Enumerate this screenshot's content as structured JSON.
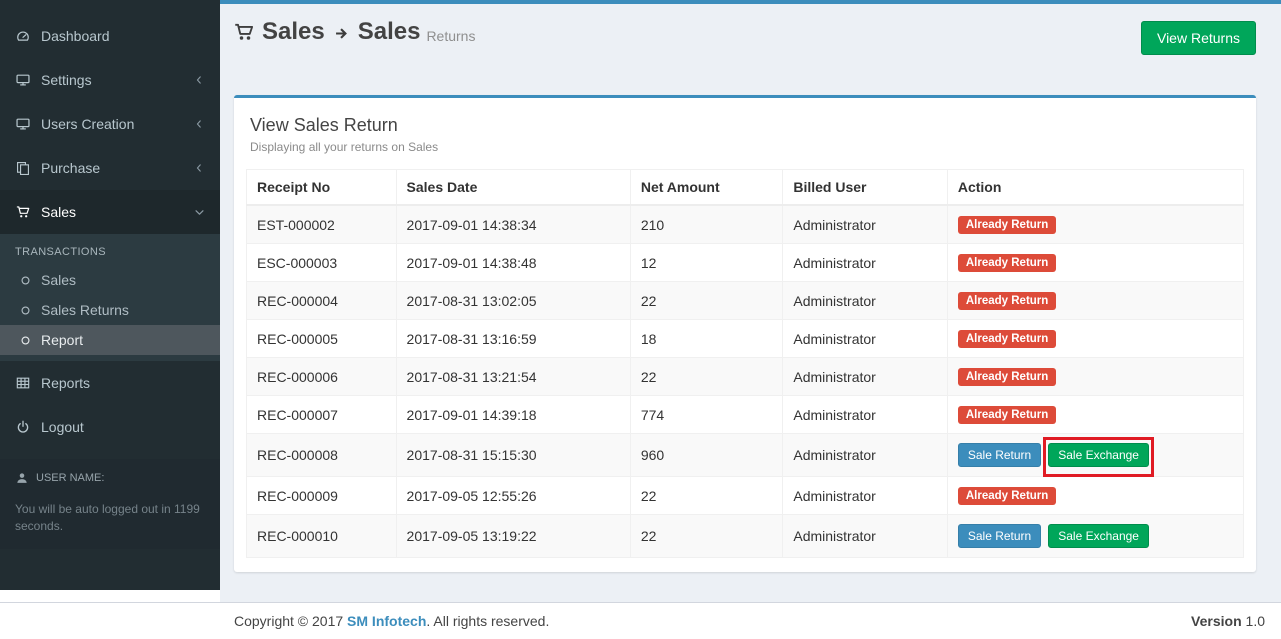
{
  "colors": {
    "sidebar_bg": "#222d32",
    "sidebar_active_bg": "#1e282c",
    "accent_blue": "#3c8dbc",
    "green": "#00a65a",
    "red_badge": "#dd4b39",
    "annotation_red": "#e01b24",
    "content_bg": "#ecf0f5"
  },
  "sidebar": {
    "items": [
      {
        "label": "Dashboard",
        "icon": "dashboard-icon"
      },
      {
        "label": "Settings",
        "icon": "desktop-icon",
        "chevron": "left"
      },
      {
        "label": "Users Creation",
        "icon": "desktop-icon",
        "chevron": "left"
      },
      {
        "label": "Purchase",
        "icon": "copy-icon",
        "chevron": "left"
      },
      {
        "label": "Sales",
        "icon": "cart-icon",
        "chevron": "down",
        "active": true,
        "submenu": {
          "header": "TRANSACTIONS",
          "items": [
            {
              "label": "Sales",
              "icon": "circle-icon"
            },
            {
              "label": "Sales Returns",
              "icon": "circle-icon"
            },
            {
              "label": "Report",
              "icon": "circle-icon",
              "highlighted": true
            }
          ]
        }
      },
      {
        "label": "Reports",
        "icon": "table-icon"
      },
      {
        "label": "Logout",
        "icon": "power-icon"
      }
    ],
    "user_panel": {
      "user_label": "USER NAME:",
      "logout_note": "You will be auto logged out in 1199 seconds."
    }
  },
  "header": {
    "title_primary": "Sales",
    "title_secondary": "Sales",
    "title_small": "Returns",
    "view_returns": "View Returns"
  },
  "panel": {
    "title": "View Sales Return",
    "subtitle": "Displaying all your returns on Sales"
  },
  "table": {
    "columns": [
      "Receipt No",
      "Sales Date",
      "Net Amount",
      "Billed User",
      "Action"
    ],
    "rows": [
      {
        "receipt_no": "EST-000002",
        "sales_date": "2017-09-01 14:38:34",
        "net_amount": 210,
        "billed_user": "Administrator",
        "actions": [
          "already_return"
        ]
      },
      {
        "receipt_no": "ESC-000003",
        "sales_date": "2017-09-01 14:38:48",
        "net_amount": 12,
        "billed_user": "Administrator",
        "actions": [
          "already_return"
        ]
      },
      {
        "receipt_no": "REC-000004",
        "sales_date": "2017-08-31 13:02:05",
        "net_amount": 22,
        "billed_user": "Administrator",
        "actions": [
          "already_return"
        ]
      },
      {
        "receipt_no": "REC-000005",
        "sales_date": "2017-08-31 13:16:59",
        "net_amount": 18,
        "billed_user": "Administrator",
        "actions": [
          "already_return"
        ]
      },
      {
        "receipt_no": "REC-000006",
        "sales_date": "2017-08-31 13:21:54",
        "net_amount": 22,
        "billed_user": "Administrator",
        "actions": [
          "already_return"
        ]
      },
      {
        "receipt_no": "REC-000007",
        "sales_date": "2017-09-01 14:39:18",
        "net_amount": 774,
        "billed_user": "Administrator",
        "actions": [
          "already_return"
        ]
      },
      {
        "receipt_no": "REC-000008",
        "sales_date": "2017-08-31 15:15:30",
        "net_amount": 960,
        "billed_user": "Administrator",
        "actions": [
          "sale_return",
          "sale_exchange"
        ],
        "annotated_action": "sale_exchange"
      },
      {
        "receipt_no": "REC-000009",
        "sales_date": "2017-09-05 12:55:26",
        "net_amount": 22,
        "billed_user": "Administrator",
        "actions": [
          "already_return"
        ]
      },
      {
        "receipt_no": "REC-000010",
        "sales_date": "2017-09-05 13:19:22",
        "net_amount": 22,
        "billed_user": "Administrator",
        "actions": [
          "sale_return",
          "sale_exchange"
        ]
      }
    ]
  },
  "labels": {
    "already_return": "Already Return",
    "sale_return": "Sale Return",
    "sale_exchange": "Sale Exchange"
  },
  "footer": {
    "copyright_prefix": "Copyright © 2017",
    "brand": "SM Infotech",
    "copyright_suffix": ". All rights reserved.",
    "version_label": "Version",
    "version_value": "1.0"
  }
}
